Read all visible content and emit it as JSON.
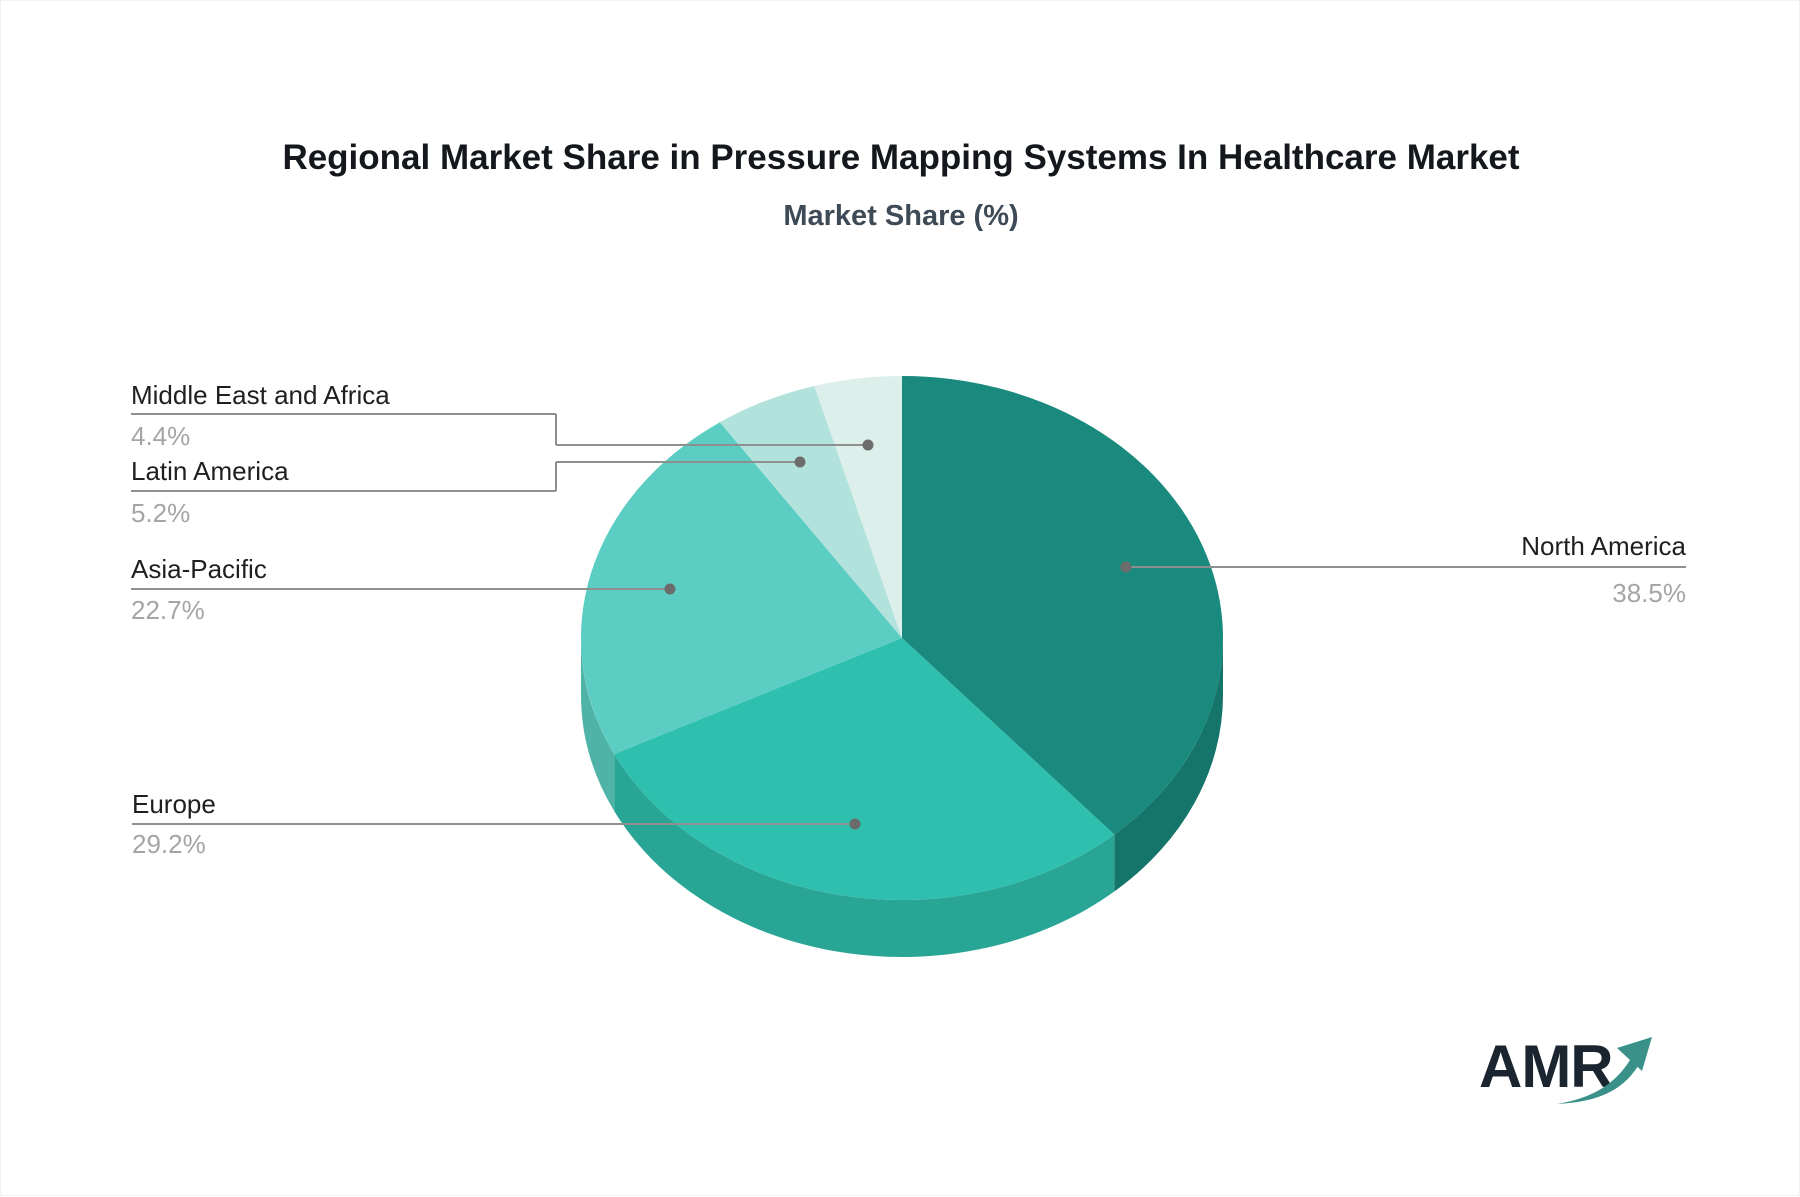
{
  "title": "Regional Market Share in Pressure Mapping Systems In Healthcare Market",
  "subtitle": "Market Share (%)",
  "logo": {
    "text": "AMR"
  },
  "chart_data": {
    "type": "pie",
    "title": "Regional Market Share in Pressure Mapping Systems In Healthcare Market",
    "subtitle": "Market Share (%)",
    "unit": "%",
    "style": "3d-pie",
    "start_angle_deg": 0,
    "direction": "clockwise",
    "legend_position": "callout-labels",
    "slices": [
      {
        "label": "North America",
        "value": 38.5,
        "display": "38.5%",
        "color": "#1a8a7e",
        "side_color": "#15756a",
        "label_side": "right"
      },
      {
        "label": "Europe",
        "value": 29.2,
        "display": "29.2%",
        "color": "#2ebfaf",
        "side_color": "#29a596",
        "label_side": "left"
      },
      {
        "label": "Asia-Pacific",
        "value": 22.7,
        "display": "22.7%",
        "color": "#5ccdc3",
        "side_color": "#4fb3a8",
        "label_side": "left"
      },
      {
        "label": "Latin America",
        "value": 5.2,
        "display": "5.2%",
        "color": "#b2e2dc",
        "side_color": "#9cccc6",
        "label_side": "left"
      },
      {
        "label": "Middle East and Africa",
        "value": 4.4,
        "display": "4.4%",
        "color": "#dcefeb",
        "side_color": "#c4d9d5",
        "label_side": "left"
      }
    ],
    "leader_line_color": "#8f8f8f",
    "leader_dot_color": "#6c6c6c",
    "label_text_color": "#1f1f1f",
    "value_text_color": "#a5a5a5"
  }
}
